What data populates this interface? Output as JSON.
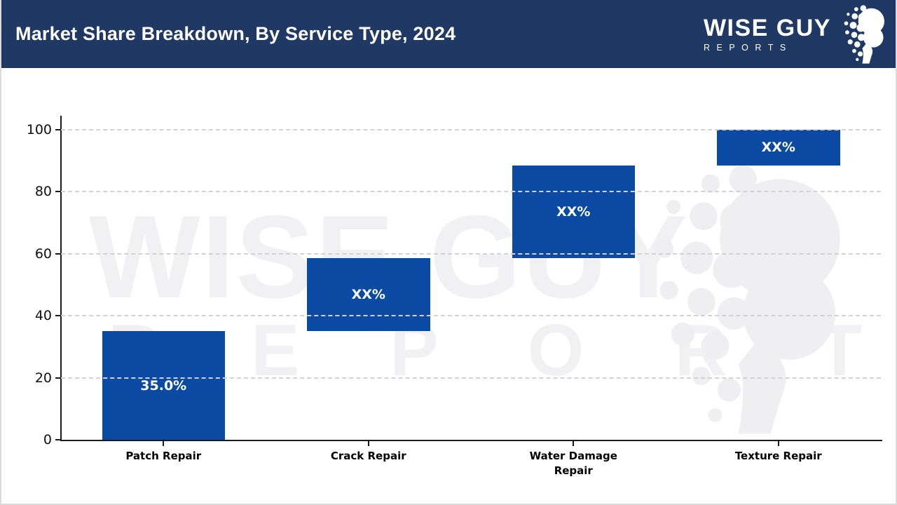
{
  "header": {
    "title": "Market Share Breakdown, By Service Type, 2024",
    "logo": {
      "line1": "WISE GUY",
      "line2": "REPORTS"
    }
  },
  "watermark": {
    "line1": "WISE GUY",
    "line2": "R E P O R T S"
  },
  "chart_data": {
    "type": "bar",
    "subtype": "waterfall",
    "title": "Market Share Breakdown, By Service Type, 2024",
    "categories": [
      "Patch Repair",
      "Crack Repair",
      "Water Damage\nRepair",
      "Texture Repair"
    ],
    "segments": [
      {
        "category": "Patch Repair",
        "start": 0,
        "end": 35,
        "label": "35.0%"
      },
      {
        "category": "Crack Repair",
        "start": 35,
        "end": 58.5,
        "label": "XX%"
      },
      {
        "category": "Water Damage Repair",
        "start": 58.5,
        "end": 88.5,
        "label": "XX%"
      },
      {
        "category": "Texture Repair",
        "start": 88.5,
        "end": 100,
        "label": "XX%"
      }
    ],
    "xlabel": "",
    "ylabel": "",
    "ylim": [
      0,
      100
    ],
    "yticks": [
      0,
      20,
      40,
      60,
      80,
      100
    ],
    "grid": "horizontal dashed, drawn above bars",
    "legend": "none"
  },
  "colors": {
    "header_bg": "#1F3864",
    "bar": "#0B4AA2",
    "bar_label": "#ffffff",
    "axis": "#1a1a1a",
    "gridline": "#d2d2d2",
    "watermark": "#f1f1f4"
  }
}
